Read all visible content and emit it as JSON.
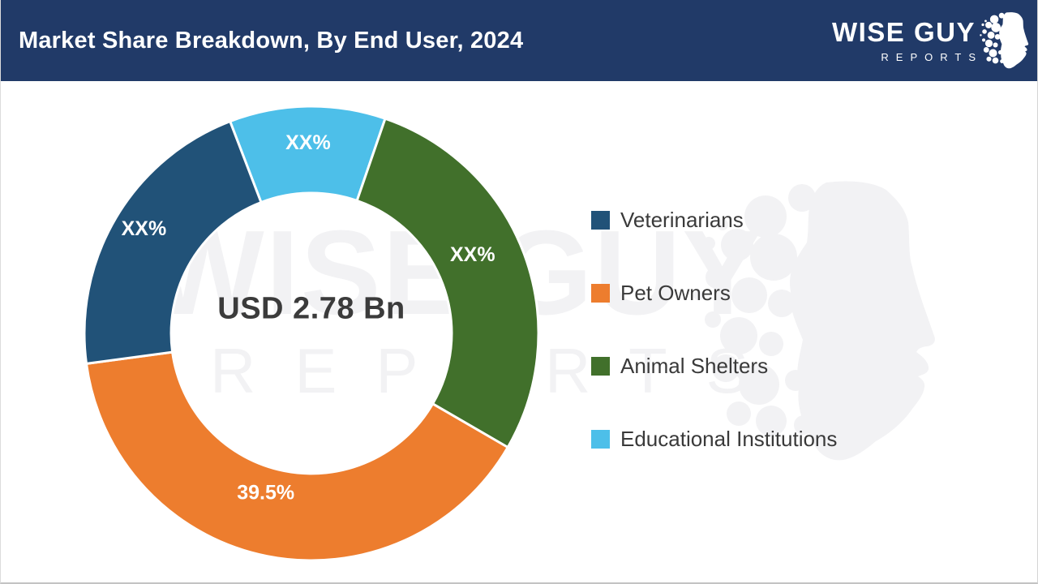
{
  "header": {
    "title": "Market Share Breakdown, By End User, 2024",
    "bg_color": "#213a68",
    "logo": {
      "brand": "WISE GUY",
      "reports": "REPORTS"
    }
  },
  "watermark": {
    "brand": "WISE GUY",
    "reports": "REPORTS"
  },
  "chart_data": {
    "type": "pie",
    "subtype": "donut",
    "title": "Market Share Breakdown, By End User, 2024",
    "center_label": "USD 2.78 Bn",
    "start_angle_deg": -21,
    "grid": false,
    "legend_position": "right",
    "segments": [
      {
        "name": "Educational Institutions",
        "share_pct_est": 11.1,
        "display_label": "XX%",
        "color": "#4dbfe9",
        "label_angle_deg": -1,
        "label_r_factor": 0.84
      },
      {
        "name": "Animal Shelters",
        "share_pct_est": 28.1,
        "display_label": "XX%",
        "color": "#41702b",
        "label_angle_deg": 64,
        "label_r_factor": 0.79
      },
      {
        "name": "Pet Owners",
        "share_pct_est": 39.5,
        "display_label": "39.5%",
        "color": "#ed7d2e",
        "label_angle_deg": 196,
        "label_r_factor": 0.73
      },
      {
        "name": "Veterinarians",
        "share_pct_est": 21.3,
        "display_label": "XX%",
        "color": "#215278",
        "label_angle_deg": 302,
        "label_r_factor": 0.87
      }
    ],
    "legend": [
      {
        "label": "Veterinarians",
        "color": "#215278"
      },
      {
        "label": "Pet Owners",
        "color": "#ed7d2e"
      },
      {
        "label": "Animal Shelters",
        "color": "#41702b"
      },
      {
        "label": "Educational Institutions",
        "color": "#4dbfe9"
      }
    ]
  }
}
